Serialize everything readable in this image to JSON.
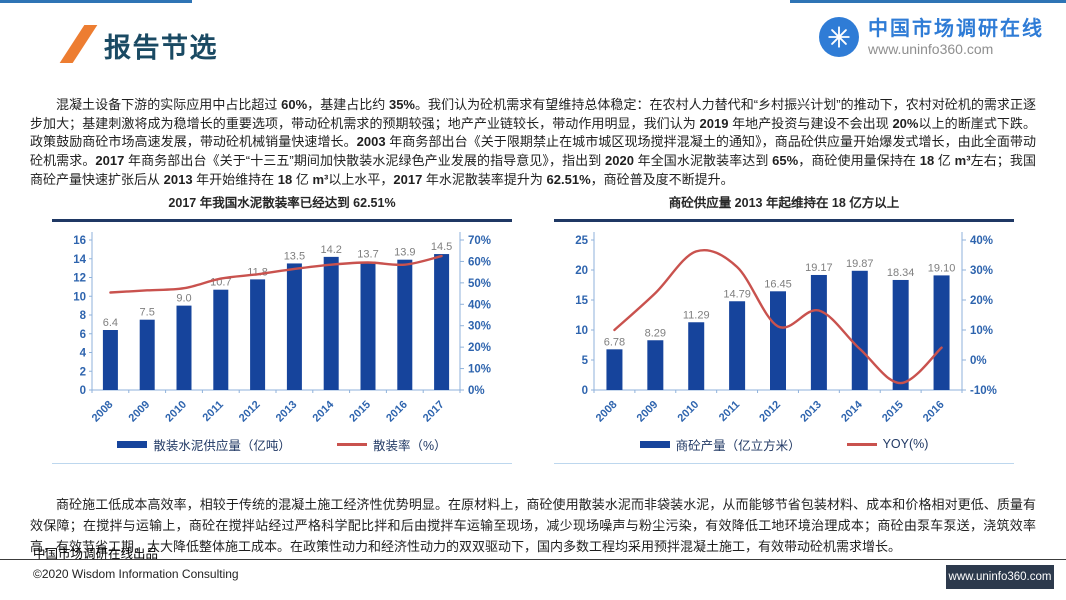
{
  "theme": {
    "accent_orange": "#ED7D31",
    "title_navy": "#1A4A63",
    "topbar_blue": "#2E74B5",
    "brand_blue": "#2F7CD6",
    "rule_navy": "#1F3864",
    "bar_blue": "#16449C",
    "line_red": "#C9524E",
    "axis_blue": "#2E64AE",
    "footer_box": "#2D3A4D"
  },
  "header": {
    "title": "报告节选"
  },
  "brand": {
    "icon": "snowflake-compass-icon",
    "name": "中国市场调研在线",
    "url": "www.uninfo360.com"
  },
  "paragraphs": {
    "p1": "混凝土设备下游的实际应用中占比超过 **60%**，基建占比约 **35%**。我们认为砼机需求有望维持总体稳定：在农村人力替代和“乡村振兴计划”的推动下，农村对砼机的需求正逐步加大；基建刺激将成为稳增长的重要选项，带动砼机需求的预期较强；地产产业链较长，带动作用明显，我们认为 **2019** 年地产投资与建设不会出现 **20%**以上的断崖式下跌。政策鼓励商砼市场高速发展，带动砼机械销量快速增长。**2003** 年商务部出台《关于限期禁止在城市城区现场搅拌混凝土的通知》，商品砼供应量开始爆发式增长，由此全面带动砼机需求。**2017** 年商务部出台《关于“十三五”期间加快散装水泥绿色产业发展的指导意见》，指出到 **2020** 年全国水泥散装率达到 **65%**，商砼使用量保持在 **18** 亿 **m³**左右；我国商砼产量快速扩张后从 **2013** 年开始维持在 **18** 亿 **m³**以上水平，**2017** 年水泥散装率提升为 **62.51%**，商砼普及度不断提升。",
    "p2": "商砼施工低成本高效率，相较于传统的混凝土施工经济性优势明显。在原材料上，商砼使用散装水泥而非袋装水泥，从而能够节省包装材料、成本和价格相对更低、质量有效保障；在搅拌与运输上，商砼在搅拌站经过严格科学配比拌和后由搅拌车运输至现场，减少现场噪声与粉尘污染，有效降低工地环境治理成本；商砼由泵车泵送，浇筑效率高，有效节省工期，大大降低整体施工成本。在政策性动力和经济性动力的双双驱动下，国内多数工程均采用预拌混凝土施工，有效带动砼机需求增长。"
  },
  "chart_data": [
    {
      "type": "bar",
      "subtype": "bar-line-combo",
      "title": "2017 年我国水泥散装率已经达到 62.51%",
      "categories": [
        "2008",
        "2009",
        "2010",
        "2011",
        "2012",
        "2013",
        "2014",
        "2015",
        "2016",
        "2017"
      ],
      "bar_series": {
        "name": "散装水泥供应量（亿吨）",
        "axis": "left",
        "color": "#16449C",
        "values": [
          6.4,
          7.5,
          9.0,
          10.7,
          11.8,
          13.5,
          14.2,
          13.7,
          13.9,
          14.5
        ],
        "labels": [
          "6.4",
          "7.5",
          "9.0",
          "10.7",
          "11.8",
          "13.5",
          "14.2",
          "13.7",
          "13.9",
          "14.5"
        ]
      },
      "line_series": {
        "name": "散装率（%）",
        "axis": "right",
        "color": "#C9524E",
        "values": [
          45.5,
          46.5,
          47.5,
          52,
          54,
          56.5,
          58.5,
          59.5,
          58.5,
          62.51
        ]
      },
      "left_axis": {
        "min": 0,
        "max": 16,
        "step": 2
      },
      "right_axis": {
        "min": 0,
        "max": 70,
        "step": 10,
        "suffix": "%"
      },
      "grid": false,
      "legend_position": "bottom"
    },
    {
      "type": "bar",
      "subtype": "bar-line-combo",
      "title": "商砼供应量 2013 年起维持在 18 亿方以上",
      "categories": [
        "2008",
        "2009",
        "2010",
        "2011",
        "2012",
        "2013",
        "2014",
        "2015",
        "2016"
      ],
      "bar_series": {
        "name": "商砼产量（亿立方米）",
        "axis": "left",
        "color": "#16449C",
        "values": [
          6.78,
          8.29,
          11.29,
          14.79,
          16.45,
          19.17,
          19.87,
          18.34,
          19.1
        ],
        "labels": [
          "6.78",
          "8.29",
          "11.29",
          "14.79",
          "16.45",
          "19.17",
          "19.87",
          "18.34",
          "19.10"
        ]
      },
      "line_series": {
        "name": "YOY(%)",
        "axis": "right",
        "color": "#C9524E",
        "values": [
          10,
          22.3,
          36.2,
          31,
          11.2,
          16.5,
          3.7,
          -7.7,
          4.1
        ]
      },
      "left_axis": {
        "min": 0,
        "max": 25,
        "step": 5
      },
      "right_axis": {
        "min": -10,
        "max": 40,
        "step": 10,
        "suffix": "%"
      },
      "grid": false,
      "legend_position": "bottom"
    }
  ],
  "footer": {
    "produced_by": "中国市场调研在线出品",
    "copyright": "©2020 Wisdom Information Consulting",
    "site": "www.uninfo360.com"
  }
}
